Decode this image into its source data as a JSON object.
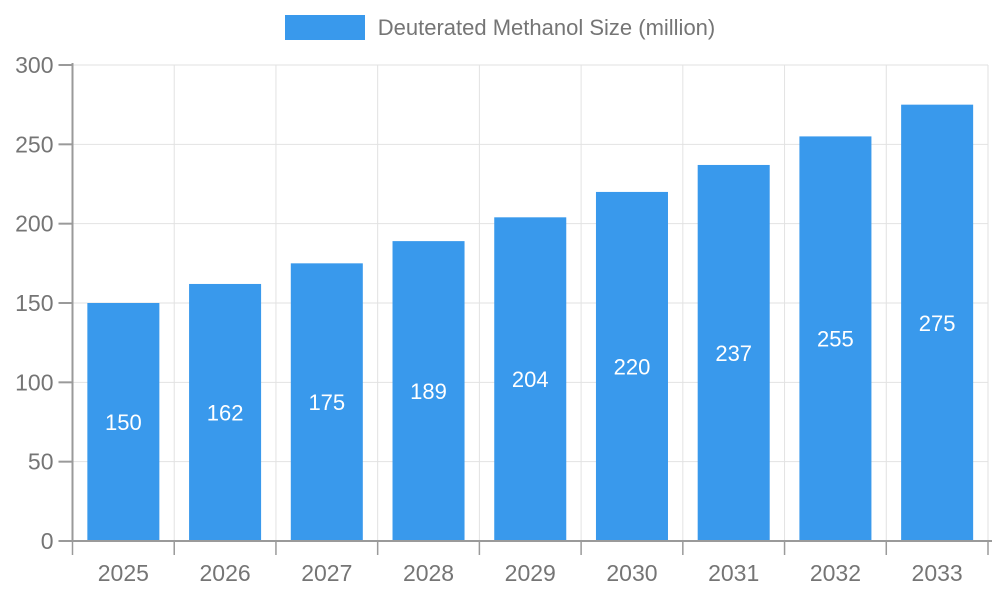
{
  "chart_data": {
    "type": "bar",
    "title": "",
    "legend_label": "Deuterated Methanol Size (million)",
    "legend_position": "top-center",
    "categories": [
      "2025",
      "2026",
      "2027",
      "2028",
      "2029",
      "2030",
      "2031",
      "2032",
      "2033"
    ],
    "values": [
      150,
      162,
      175,
      189,
      204,
      220,
      237,
      255,
      275
    ],
    "xlabel": "",
    "ylabel": "",
    "ylim": [
      0,
      300
    ],
    "yticks": [
      0,
      50,
      100,
      150,
      200,
      250,
      300
    ],
    "grid": true,
    "value_label_position": "inside-center",
    "colors": {
      "bar": "#3999EC",
      "axis": "#9A9A9A",
      "grid": "#E2E2E2",
      "tick_label": "#757575",
      "legend_text": "#757575",
      "value_label": "#FFFFFF",
      "background": "#FFFFFF"
    }
  }
}
